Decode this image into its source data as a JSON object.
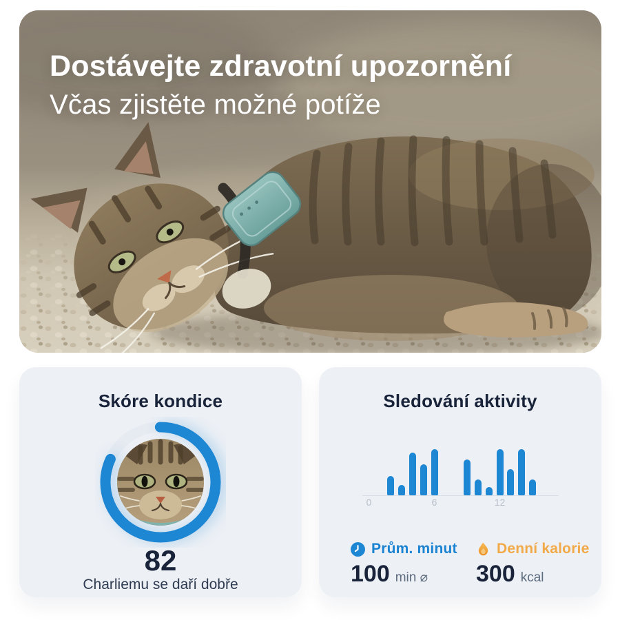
{
  "hero": {
    "title": "Dostávejte zdravotní upozornění",
    "subtitle": "Včas zjistěte možné potíže"
  },
  "fitness_card": {
    "title": "Skóre kondice",
    "score": "82",
    "score_max": 100,
    "caption": "Charliemu se daří dobře",
    "avatar_icon": "cat-face-avatar"
  },
  "activity_card": {
    "title": "Sledování aktivity",
    "stats": [
      {
        "icon": "clock-icon",
        "label": "Prům. minut",
        "value": "100",
        "unit": "min ⌀",
        "color": "#1b84d2"
      },
      {
        "icon": "flame-icon",
        "label": "Denní kalorie",
        "value": "300",
        "unit": "kcal",
        "color": "#f2a947"
      }
    ]
  },
  "chart_data": {
    "type": "bar",
    "title": "Sledování aktivity",
    "x": [
      2,
      3,
      4,
      5,
      6,
      9,
      10,
      11,
      12,
      13,
      14,
      15
    ],
    "values": [
      42,
      22,
      93,
      67,
      100,
      78,
      34,
      18,
      100,
      57,
      100,
      34
    ],
    "xticks": [
      0,
      6,
      12
    ],
    "x_range": [
      0,
      17.5
    ],
    "ylim": [
      0,
      100
    ],
    "xlabel": "",
    "ylabel": "",
    "grid": false,
    "legend": "none",
    "bar_color": "#1d87d4",
    "axis_color": "#d9dee6",
    "tick_color": "#b5bec8"
  },
  "colors": {
    "accent_blue": "#1d87d4",
    "accent_orange": "#f2a947",
    "navy_text": "#19243a",
    "card_bg": "#edf0f5",
    "ring_track": "#e6eaf1",
    "tracker_teal": "#7fb3ae"
  }
}
